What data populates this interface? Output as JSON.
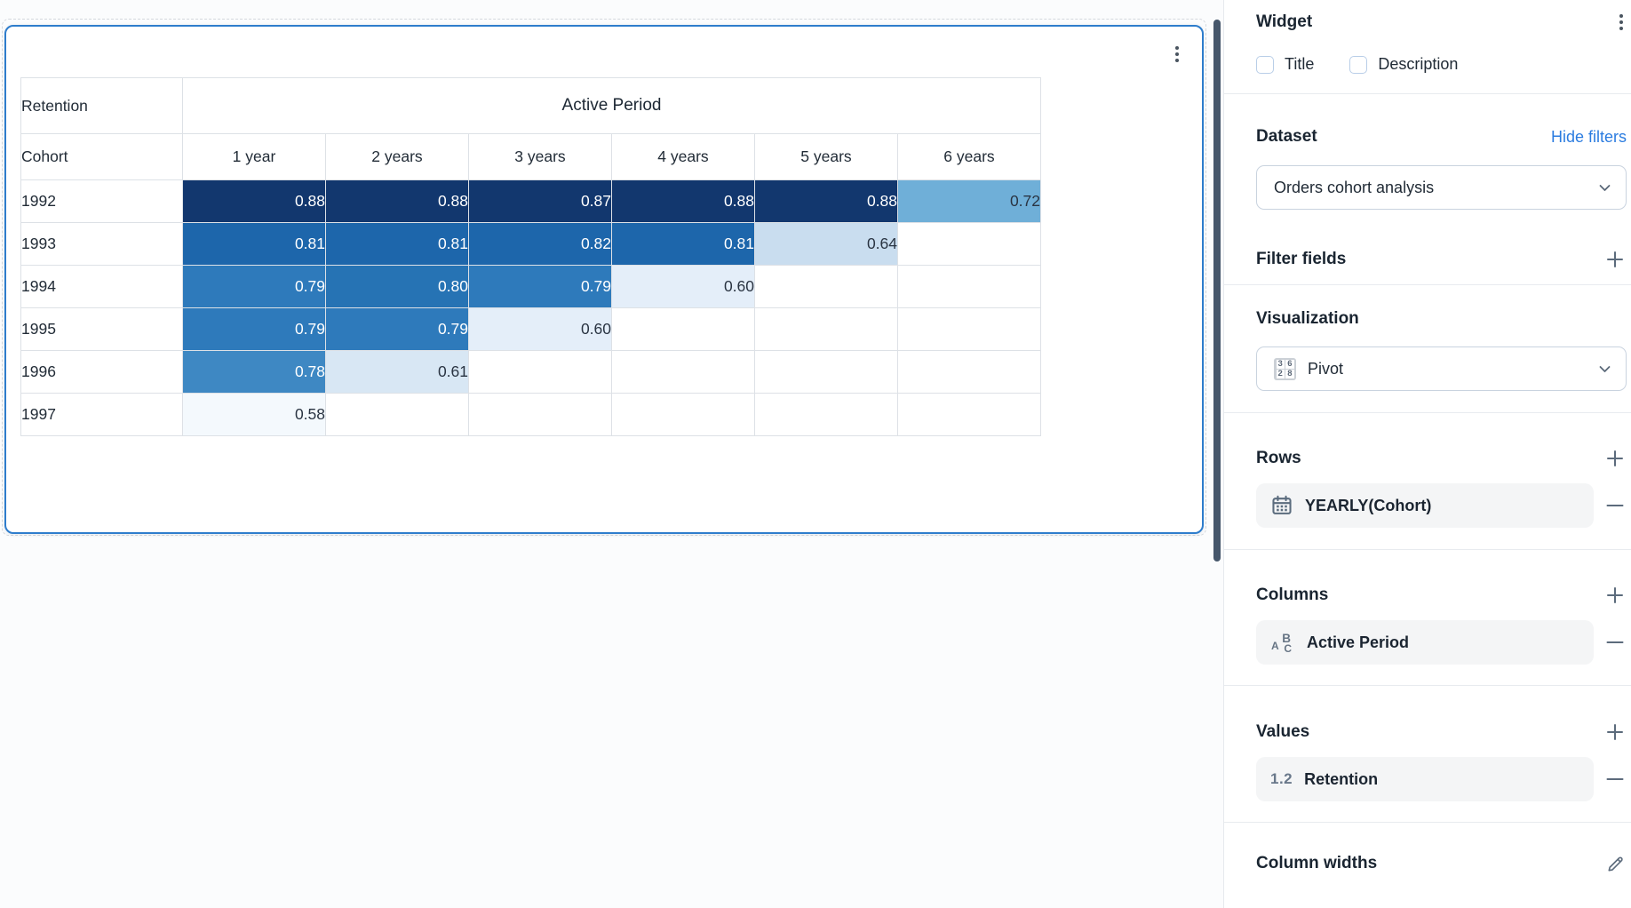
{
  "theme": {
    "selected_border": "#2e7dcc",
    "link_blue": "#2b7ce0",
    "scrollbar": "#46576b"
  },
  "panel": {
    "widget": {
      "title": "Widget",
      "checkboxes": [
        {
          "label": "Title",
          "checked": false
        },
        {
          "label": "Description",
          "checked": false
        }
      ]
    },
    "dataset": {
      "title": "Dataset",
      "link_label": "Hide filters",
      "value": "Orders cohort analysis"
    },
    "filter_fields": {
      "title": "Filter fields"
    },
    "visualization": {
      "title": "Visualization",
      "value": "Pivot",
      "icon_numbers": [
        "3",
        "6",
        "2",
        "8"
      ]
    },
    "rows": {
      "title": "Rows",
      "items": [
        {
          "label": "YEARLY(Cohort)",
          "icon": "calendar"
        }
      ]
    },
    "columns": {
      "title": "Columns",
      "items": [
        {
          "label": "Active Period",
          "icon": "abc"
        }
      ]
    },
    "values": {
      "title": "Values",
      "items": [
        {
          "label": "Retention",
          "icon_text": "1.2"
        }
      ]
    },
    "column_widths": {
      "title": "Column widths"
    }
  },
  "chart_data": {
    "type": "table",
    "subtype": "pivot-heatmap",
    "measure": "Retention",
    "column_group": "Active Period",
    "row_dimension": "Cohort",
    "columns": [
      "1 year",
      "2 years",
      "3 years",
      "4 years",
      "5 years",
      "6 years"
    ],
    "rows": [
      {
        "cohort": "1992",
        "values": [
          "0.88",
          "0.88",
          "0.87",
          "0.88",
          "0.88",
          "0.72"
        ]
      },
      {
        "cohort": "1993",
        "values": [
          "0.81",
          "0.81",
          "0.82",
          "0.81",
          "0.64",
          null
        ]
      },
      {
        "cohort": "1994",
        "values": [
          "0.79",
          "0.80",
          "0.79",
          "0.60",
          null,
          null
        ]
      },
      {
        "cohort": "1995",
        "values": [
          "0.79",
          "0.79",
          "0.60",
          null,
          null,
          null
        ]
      },
      {
        "cohort": "1996",
        "values": [
          "0.78",
          "0.61",
          null,
          null,
          null,
          null
        ]
      },
      {
        "cohort": "1997",
        "values": [
          "0.58",
          null,
          null,
          null,
          null,
          null
        ]
      }
    ],
    "heat_scale": [
      {
        "min": 0.85,
        "bg": "#12376e",
        "text": "#ffffff"
      },
      {
        "min": 0.805,
        "bg": "#1d66ab",
        "text": "#ffffff"
      },
      {
        "min": 0.795,
        "bg": "#2673b4",
        "text": "#ffffff"
      },
      {
        "min": 0.785,
        "bg": "#2e7abb",
        "text": "#ffffff"
      },
      {
        "min": 0.75,
        "bg": "#3e88c3",
        "text": "#ffffff"
      },
      {
        "min": 0.7,
        "bg": "#6fafd8",
        "text": "#2a3442"
      },
      {
        "min": 0.63,
        "bg": "#c9ddef",
        "text": "#2a3442"
      },
      {
        "min": 0.605,
        "bg": "#d8e7f4",
        "text": "#2a3442"
      },
      {
        "min": 0.59,
        "bg": "#e4eef9",
        "text": "#2a3442"
      },
      {
        "min": 0,
        "bg": "#f4f9fd",
        "text": "#2a3442"
      }
    ]
  }
}
